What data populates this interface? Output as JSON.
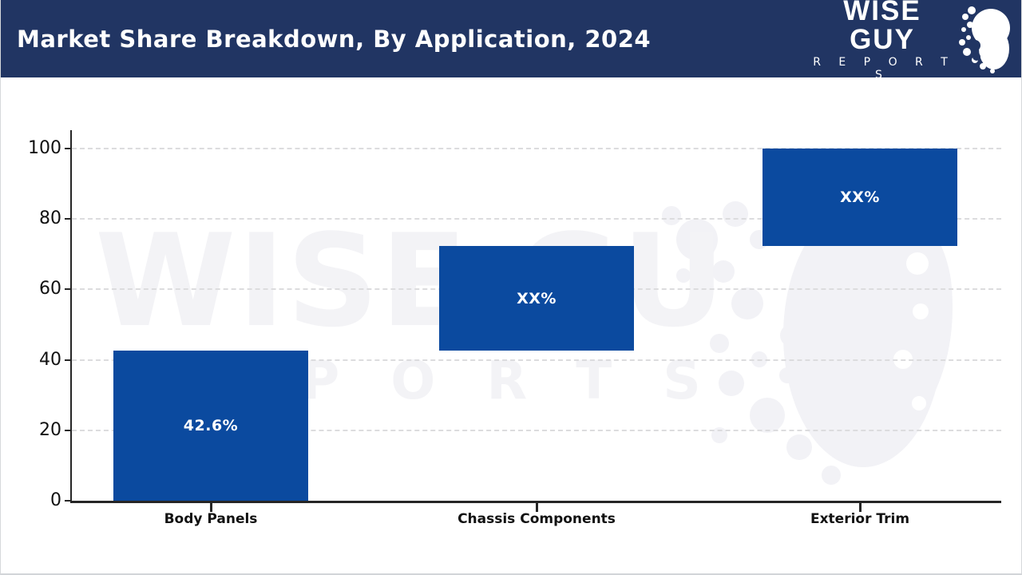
{
  "header": {
    "title": "Market Share Breakdown, By Application, 2024",
    "bg_color": "#213563",
    "logo": {
      "line1": "WISE GUY",
      "line2": "R E P O R T S"
    }
  },
  "watermark": {
    "line1": "WISE GU",
    "line2": "REPORTS"
  },
  "chart_data": {
    "type": "bar",
    "variant": "waterfall-floating-bars",
    "title": "Market Share Breakdown, By Application, 2024",
    "categories": [
      "Body Panels",
      "Chassis Components",
      "Exterior Trim"
    ],
    "segments": [
      {
        "category": "Body Panels",
        "start": 0,
        "end": 42.6,
        "label": "42.6%"
      },
      {
        "category": "Chassis Components",
        "start": 42.6,
        "end": 72.3,
        "label": "XX%"
      },
      {
        "category": "Exterior Trim",
        "start": 72.3,
        "end": 100,
        "label": "XX%"
      }
    ],
    "xlabel": "",
    "ylabel": "",
    "ylim": [
      0,
      100
    ],
    "yticks": [
      0,
      20,
      40,
      60,
      80,
      100
    ],
    "grid": "horizontal-dashed",
    "legend": "none",
    "bar_color": "#0b4a9f",
    "grid_color": "#dcdcde",
    "axis_color": "#262626"
  }
}
